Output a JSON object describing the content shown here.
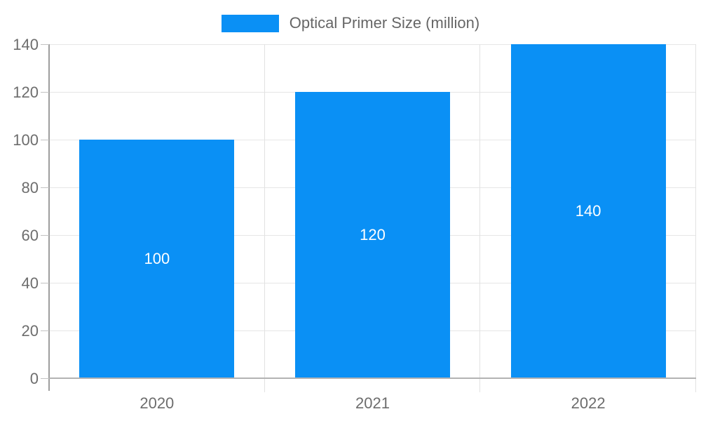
{
  "legend": {
    "label": "Optical Primer Size (million)"
  },
  "chart_data": {
    "type": "bar",
    "title": "Optical Primer Size (million)",
    "categories": [
      "2020",
      "2021",
      "2022"
    ],
    "series": [
      {
        "name": "Optical Primer Size (million)",
        "values": [
          100,
          120,
          140
        ]
      }
    ],
    "bar_labels": [
      "100",
      "120",
      "140"
    ],
    "xlabel": "",
    "ylabel": "",
    "ylim": [
      0,
      140
    ],
    "yticks": [
      0,
      20,
      40,
      60,
      80,
      100,
      120,
      140
    ],
    "grid": true,
    "legend_position": "top-center",
    "colors": {
      "bar": "#0A90F5",
      "bar_label_text": "#FFFFFF",
      "axis_text": "#6D6D6D",
      "legend_text": "#666666",
      "gridline": "#E6E6E6",
      "y_axis_line": "#9E9E9E",
      "x_axis_line": "#B3B3B3"
    }
  }
}
